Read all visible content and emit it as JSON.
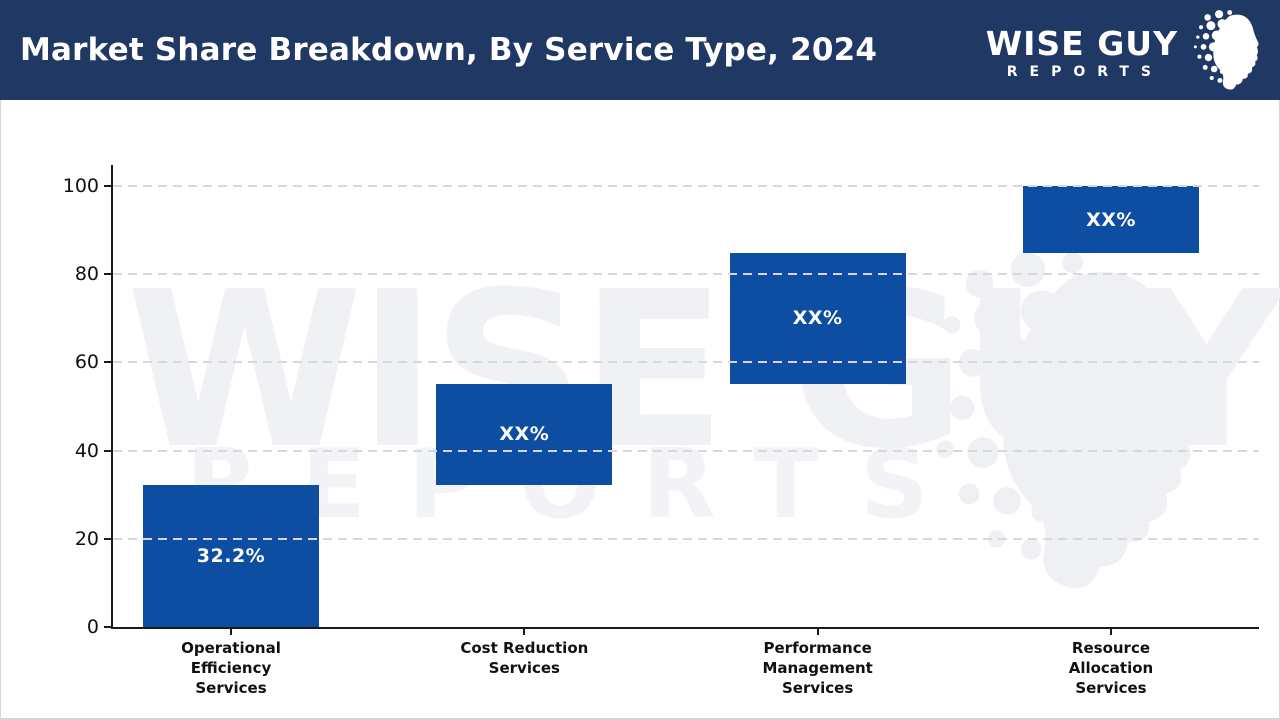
{
  "header": {
    "title": "Market Share Breakdown, By Service Type, 2024",
    "logo": {
      "line1": "WISE GUY",
      "line2": "REPORTS"
    }
  },
  "watermark": {
    "line1": "WISE GUY",
    "line2": "REPORTS"
  },
  "chart_data": {
    "type": "bar",
    "subtype": "waterfall",
    "title": "Market Share Breakdown, By Service Type, 2024",
    "categories": [
      [
        "Operational",
        "Efficiency",
        "Services"
      ],
      [
        "Cost Reduction",
        "Services"
      ],
      [
        "Performance",
        "Management",
        "Services"
      ],
      [
        "Resource",
        "Allocation",
        "Services"
      ]
    ],
    "series": [
      {
        "name": "Market Share %",
        "segments": [
          {
            "start": 0,
            "end": 32.2,
            "label": "32.2%"
          },
          {
            "start": 32.2,
            "end": 55.2,
            "label": "XX%"
          },
          {
            "start": 55.2,
            "end": 84.8,
            "label": "XX%"
          },
          {
            "start": 84.8,
            "end": 100,
            "label": "XX%"
          }
        ]
      }
    ],
    "ylim": [
      0,
      100
    ],
    "yticks": [
      0,
      20,
      40,
      60,
      80,
      100
    ],
    "ytick_labels": [
      "0",
      "20",
      "40",
      "60",
      "80",
      "100"
    ],
    "grid": true,
    "legend": false,
    "bar_color": "#0d4da2",
    "bar_label_color": "#ffffff",
    "grid_color": "#d6d8db",
    "axis_color": "#1a1a1a",
    "header_bg": "#1f3864",
    "watermark_color": "#f0f1f4"
  }
}
